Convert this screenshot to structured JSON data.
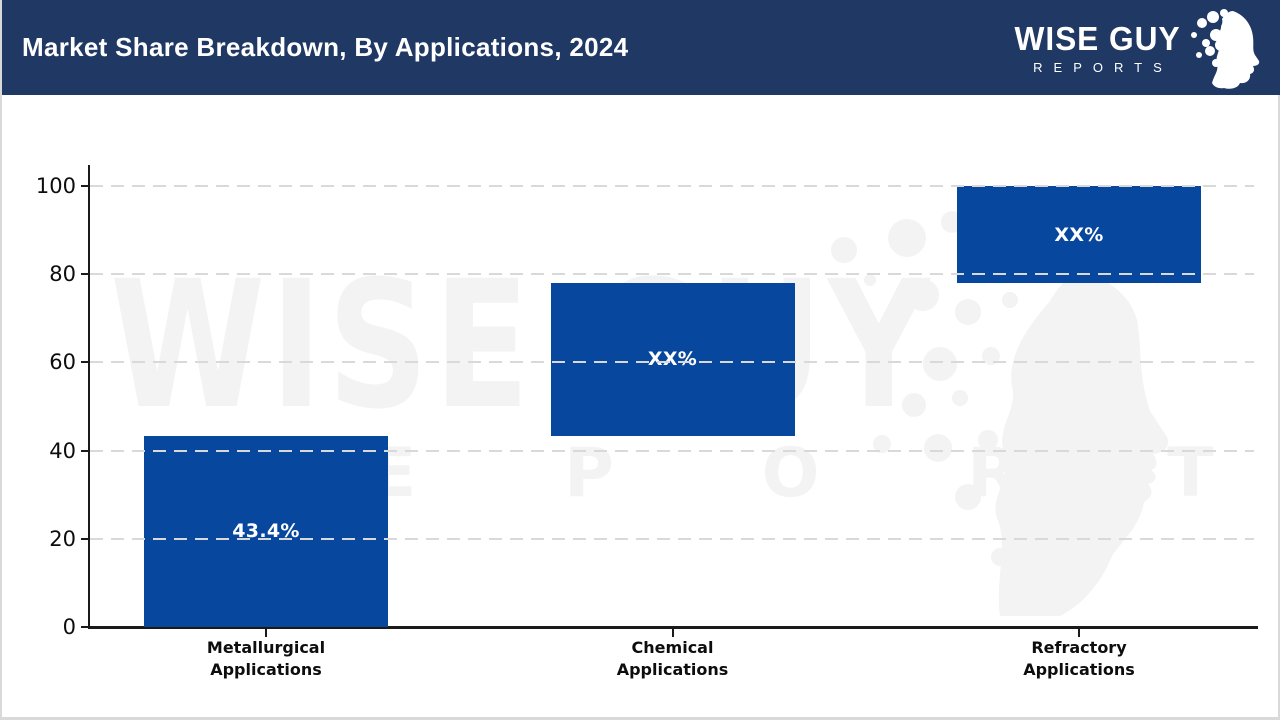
{
  "header": {
    "title": "Market Share Breakdown, By Applications, 2024",
    "logo": {
      "line1": "WISE GUY",
      "line2": "REPORTS"
    }
  },
  "watermark": {
    "line1": "WISE GUY",
    "line2": "R E P O R T S"
  },
  "colors": {
    "header_bg": "#1f3864",
    "bar": "#08479e",
    "bar_label": "#ffffff",
    "grid": "#d9d9d9",
    "axis": "#1a1a1a",
    "watermark": "#f3f3f3",
    "background": "#ffffff"
  },
  "chart_data": {
    "type": "bar",
    "subtype": "waterfall-stacked-market-share",
    "title": "Market Share Breakdown, By Applications, 2024",
    "categories": [
      "Metallurgical Applications",
      "Chemical Applications",
      "Refractory Applications"
    ],
    "category_lines": [
      [
        "Metallurgical",
        "Applications"
      ],
      [
        "Chemical",
        "Applications"
      ],
      [
        "Refractory",
        "Applications"
      ]
    ],
    "series": [
      {
        "name": "Market Share (%)",
        "segments": [
          {
            "category": "Metallurgical Applications",
            "start": 0,
            "end": 43.4,
            "label": "43.4%"
          },
          {
            "category": "Chemical Applications",
            "start": 43.4,
            "end": 78,
            "label": "XX%"
          },
          {
            "category": "Refractory Applications",
            "start": 78,
            "end": 100,
            "label": "XX%"
          }
        ]
      }
    ],
    "bar_value_labels": [
      "43.4%",
      "XX%",
      "XX%"
    ],
    "xlabel": "",
    "ylabel": "",
    "ylim": [
      0,
      105
    ],
    "yticks": [
      0,
      20,
      40,
      60,
      80,
      100
    ],
    "grid": "horizontal dashed",
    "legend_position": "none"
  }
}
